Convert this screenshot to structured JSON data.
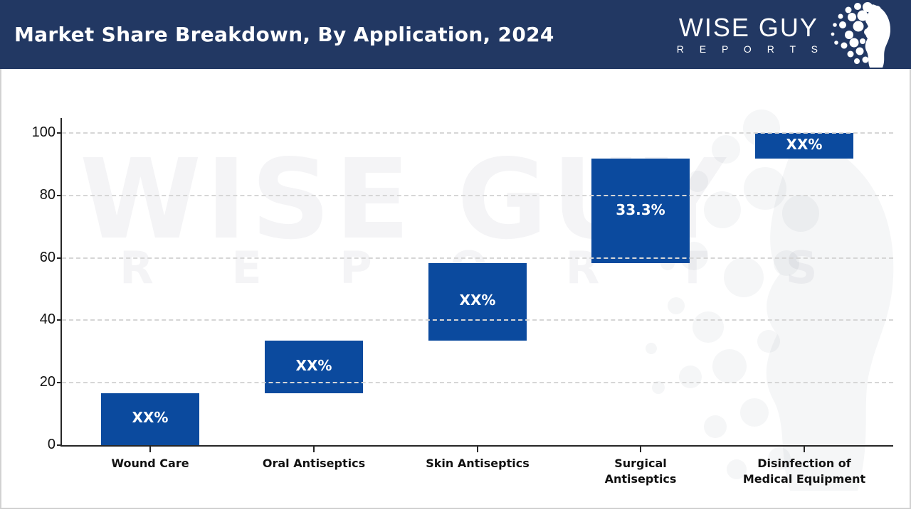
{
  "header": {
    "title": "Market Share Breakdown, By Application, 2024",
    "logo": {
      "line1": "WISE GUY",
      "line2": "R E P O R T S"
    }
  },
  "watermark": {
    "line1": "WISE GUY",
    "line2": "R E P O R T S"
  },
  "chart_data": {
    "type": "bar",
    "subtype": "waterfall",
    "title": "Market Share Breakdown, By Application, 2024",
    "categories": [
      "Wound Care",
      "Oral Antiseptics",
      "Skin Antiseptics",
      "Surgical Antiseptics",
      "Disinfection of Medical Equipment"
    ],
    "category_lines": [
      [
        "Wound Care"
      ],
      [
        "Oral Antiseptics"
      ],
      [
        "Skin Antiseptics"
      ],
      [
        "Surgical",
        "Antiseptics"
      ],
      [
        "Disinfection of",
        "Medical Equipment"
      ]
    ],
    "series": [
      {
        "name": "Market Share (%)",
        "segments": [
          {
            "category": "Wound Care",
            "start": 0,
            "end": 16.7,
            "value": 16.7,
            "label": "XX%"
          },
          {
            "category": "Oral Antiseptics",
            "start": 16.7,
            "end": 33.4,
            "value": 16.7,
            "label": "XX%"
          },
          {
            "category": "Skin Antiseptics",
            "start": 33.4,
            "end": 58.4,
            "value": 25.0,
            "label": "XX%"
          },
          {
            "category": "Surgical Antiseptics",
            "start": 58.4,
            "end": 91.7,
            "value": 33.3,
            "label": "33.3%"
          },
          {
            "category": "Disinfection of Medical Equipment",
            "start": 91.7,
            "end": 100,
            "value": 8.3,
            "label": "XX%"
          }
        ]
      }
    ],
    "yticks": [
      0,
      20,
      40,
      60,
      80,
      100
    ],
    "ylim": [
      0,
      105
    ],
    "xlabel": "",
    "ylabel": "",
    "grid": "horizontal-dashed-over-bars",
    "legend": "none",
    "bar_color": "#0b4a9e",
    "bar_label_color": "#ffffff",
    "axis_color": "#262626",
    "grid_color": "#d6d6d6"
  },
  "colors": {
    "header_bg": "#223863",
    "bar": "#0b4a9e",
    "frame_border": "#d2d2d2",
    "watermark": "rgba(30,40,70,0.05)"
  }
}
